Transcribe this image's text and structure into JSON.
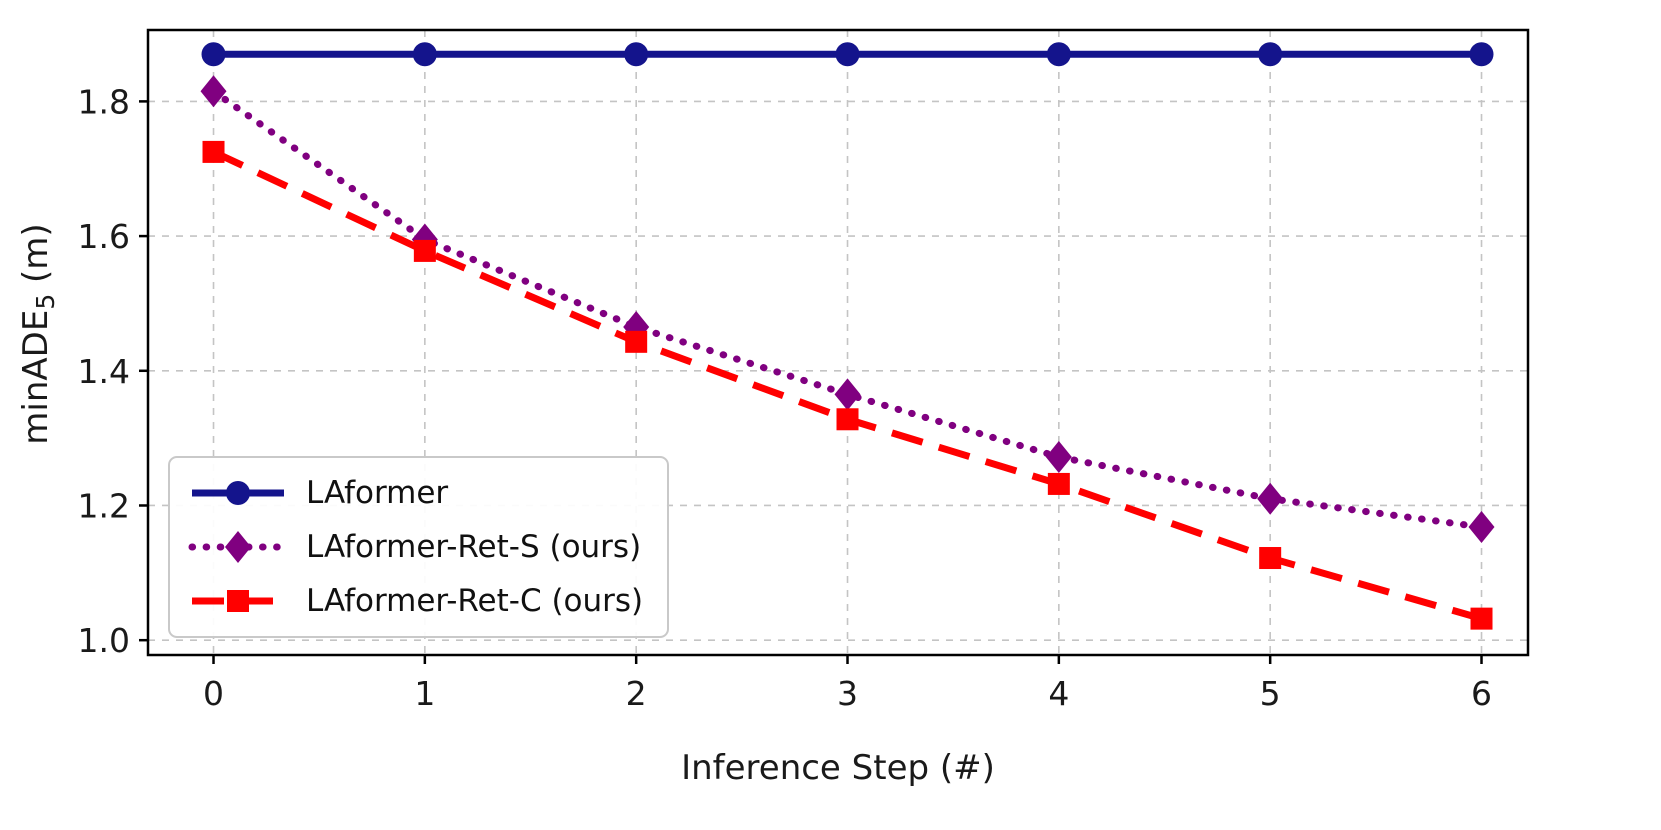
{
  "figure": {
    "background": "#ffffff",
    "text_color": "#1a1a1a"
  },
  "chart_data": {
    "type": "line",
    "title": "",
    "xlabel": "Inference Step (#)",
    "ylabel_main": "minADE",
    "ylabel_sub": "5",
    "ylabel_unit": " (m)",
    "x": [
      0,
      1,
      2,
      3,
      4,
      5,
      6
    ],
    "xticks": [
      0,
      1,
      2,
      3,
      4,
      5,
      6
    ],
    "yticks": [
      1.0,
      1.2,
      1.4,
      1.6,
      1.8
    ],
    "xlim": [
      -0.31,
      6.22
    ],
    "ylim": [
      0.978,
      1.906
    ],
    "grid": true,
    "grid_color": "#c4c4c4",
    "legend_position": "lower left",
    "series": [
      {
        "name": "LAformer",
        "color": "#14148c",
        "line_style": "solid",
        "marker": "circle",
        "values": [
          1.87,
          1.87,
          1.87,
          1.87,
          1.87,
          1.87,
          1.87
        ]
      },
      {
        "name": "LAformer-Ret-S (ours)",
        "color": "#800080",
        "line_style": "dotted",
        "marker": "diamond",
        "values": [
          1.815,
          1.595,
          1.465,
          1.365,
          1.272,
          1.21,
          1.168
        ]
      },
      {
        "name": "LAformer-Ret-C (ours)",
        "color": "#ff0000",
        "line_style": "dashed",
        "marker": "square",
        "values": [
          1.725,
          1.578,
          1.443,
          1.328,
          1.232,
          1.122,
          1.032
        ]
      }
    ]
  }
}
